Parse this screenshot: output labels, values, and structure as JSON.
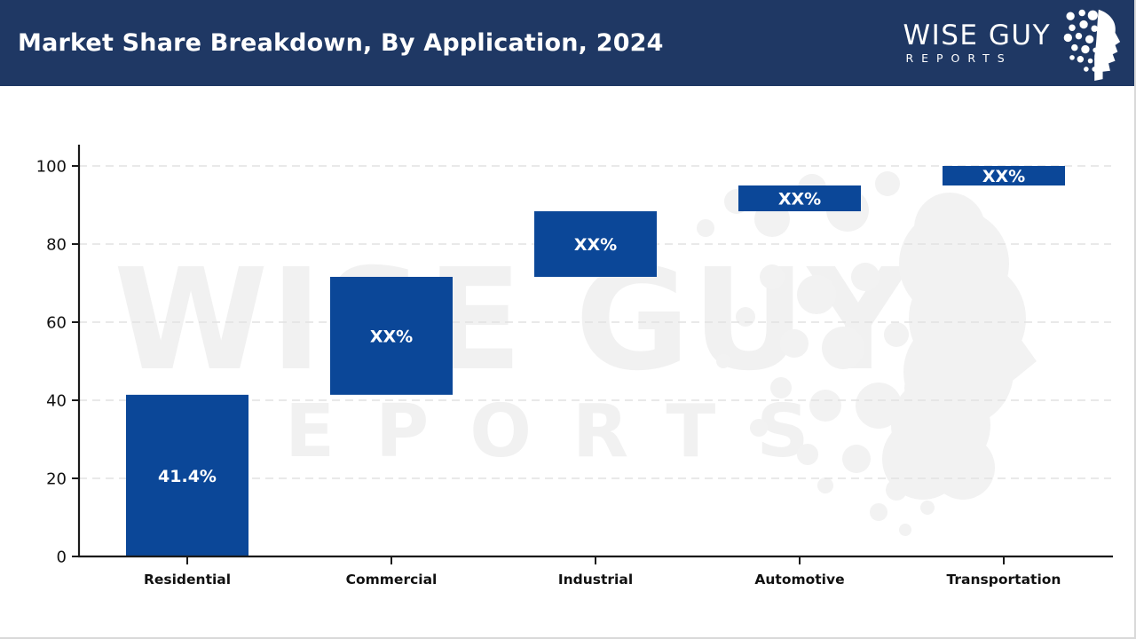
{
  "header": {
    "title": "Market Share Breakdown, By Application, 2024",
    "bg_color": "#1f3864",
    "logo": {
      "line1": "WISE GUY",
      "line2": "REPORTS"
    }
  },
  "watermark": {
    "line1": "WISE GUY",
    "line2": "REPORTS"
  },
  "chart_data": {
    "type": "bar",
    "subtype": "waterfall-cumulative",
    "title": "Market Share Breakdown, By Application, 2024",
    "categories": [
      "Residential",
      "Commercial",
      "Industrial",
      "Automotive",
      "Transportation"
    ],
    "segments": [
      {
        "category": "Residential",
        "start": 0,
        "end": 41.4,
        "label": "41.4%"
      },
      {
        "category": "Commercial",
        "start": 41.4,
        "end": 71.6,
        "label": "XX%"
      },
      {
        "category": "Industrial",
        "start": 71.6,
        "end": 88.4,
        "label": "XX%"
      },
      {
        "category": "Automotive",
        "start": 88.4,
        "end": 95.0,
        "label": "XX%"
      },
      {
        "category": "Transportation",
        "start": 95.0,
        "end": 100.0,
        "label": "XX%"
      }
    ],
    "y_ticks": [
      0,
      20,
      40,
      60,
      80,
      100
    ],
    "ylim": [
      0,
      105.5
    ],
    "xlabel": "",
    "ylabel": "",
    "grid": "horizontal-dashed",
    "legend": "none",
    "bar_color": "#0b4798",
    "bar_label_color": "#ffffff",
    "grid_color": "#e2e2e2",
    "axis_color": "#1a1a1a",
    "tick_label_color": "#111111"
  }
}
